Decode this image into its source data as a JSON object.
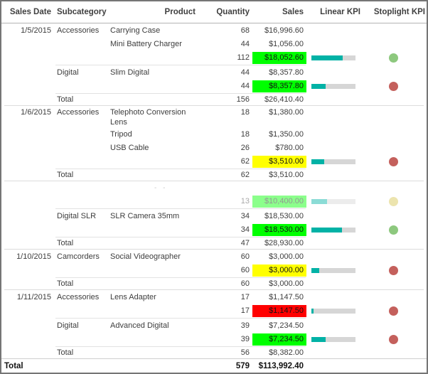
{
  "columns": [
    "Sales Date",
    "Subcategory",
    "Product",
    "Quantity",
    "Sales",
    "Linear KPI",
    "Stoplight KPI"
  ],
  "palette": {
    "bar_fill": "#01b2a6",
    "bar_track": "#d6d6d6",
    "light_green": "#8dc87e",
    "light_red": "#c4605c",
    "light_yellow": "#d6c44e",
    "hl_green": "#00ff00",
    "hl_yellow": "#ffff00",
    "hl_red": "#ff0000"
  },
  "rows": [
    {
      "type": "item",
      "date": "1/5/2015",
      "subcat": "Accessories",
      "product": "Carrying Case",
      "qty": "68",
      "sales": "$16,996.60"
    },
    {
      "type": "item",
      "product": "Mini Battery Charger",
      "qty": "44",
      "sales": "$1,056.00"
    },
    {
      "type": "subtotal",
      "qty": "112",
      "sales": "$18,052.60",
      "highlight": "green",
      "bar": 0.71,
      "light": "green"
    },
    {
      "type": "divider",
      "span": "partial"
    },
    {
      "type": "item",
      "subcat": "Digital",
      "product": "Slim Digital",
      "qty": "44",
      "sales": "$8,357.80"
    },
    {
      "type": "subtotal",
      "qty": "44",
      "sales": "$8,357.80",
      "highlight": "green",
      "bar": 0.33,
      "light": "red"
    },
    {
      "type": "divider",
      "span": "partial"
    },
    {
      "type": "total",
      "label": "Total",
      "qty": "156",
      "sales": "$26,410.40"
    },
    {
      "type": "divider",
      "span": "full"
    },
    {
      "type": "item",
      "date": "1/6/2015",
      "subcat": "Accessories",
      "product": "Telephoto Conversion Lens",
      "qty": "18",
      "sales": "$1,380.00",
      "tall": true
    },
    {
      "type": "item",
      "product": "Tripod",
      "qty": "18",
      "sales": "$1,350.00"
    },
    {
      "type": "item",
      "product": "USB Cable",
      "qty": "26",
      "sales": "$780.00"
    },
    {
      "type": "subtotal",
      "qty": "62",
      "sales": "$3,510.00",
      "highlight": "yellow",
      "bar": 0.29,
      "light": "red"
    },
    {
      "type": "divider",
      "span": "partial"
    },
    {
      "type": "total",
      "label": "Total",
      "qty": "62",
      "sales": "$3,510.00",
      "faded": true
    },
    {
      "type": "divider",
      "span": "full"
    },
    {
      "type": "gap",
      "artifact": "- -"
    },
    {
      "type": "subtotal",
      "qty": "13",
      "sales": "$10,400.00",
      "highlight": "green",
      "bar": 0.36,
      "light": "yellow",
      "faded": true
    },
    {
      "type": "divider",
      "span": "partial"
    },
    {
      "type": "item",
      "subcat": "Digital SLR",
      "product": "SLR Camera 35mm",
      "qty": "34",
      "sales": "$18,530.00"
    },
    {
      "type": "subtotal",
      "qty": "34",
      "sales": "$18,530.00",
      "highlight": "green",
      "bar": 0.7,
      "light": "green"
    },
    {
      "type": "divider",
      "span": "partial"
    },
    {
      "type": "total",
      "label": "Total",
      "qty": "47",
      "sales": "$28,930.00"
    },
    {
      "type": "divider",
      "span": "full"
    },
    {
      "type": "item",
      "date": "1/10/2015",
      "subcat": "Camcorders",
      "product": "Social Videographer",
      "qty": "60",
      "sales": "$3,000.00"
    },
    {
      "type": "subtotal",
      "qty": "60",
      "sales": "$3,000.00",
      "highlight": "yellow",
      "bar": 0.17,
      "light": "red"
    },
    {
      "type": "divider",
      "span": "partial"
    },
    {
      "type": "total",
      "label": "Total",
      "qty": "60",
      "sales": "$3,000.00"
    },
    {
      "type": "divider",
      "span": "full"
    },
    {
      "type": "item",
      "date": "1/11/2015",
      "subcat": "Accessories",
      "product": "Lens Adapter",
      "qty": "17",
      "sales": "$1,147.50"
    },
    {
      "type": "subtotal",
      "qty": "17",
      "sales": "$1,147.50",
      "highlight": "red",
      "bar": 0.05,
      "light": "red"
    },
    {
      "type": "divider",
      "span": "partial"
    },
    {
      "type": "item",
      "subcat": "Digital",
      "product": "Advanced Digital",
      "qty": "39",
      "sales": "$7,234.50"
    },
    {
      "type": "subtotal",
      "qty": "39",
      "sales": "$7,234.50",
      "highlight": "green",
      "bar": 0.32,
      "light": "red"
    },
    {
      "type": "divider",
      "span": "partial"
    },
    {
      "type": "total",
      "label": "Total",
      "qty": "56",
      "sales": "$8,382.00"
    },
    {
      "type": "grand",
      "label": "Total",
      "qty": "579",
      "sales": "$113,992.40"
    }
  ]
}
